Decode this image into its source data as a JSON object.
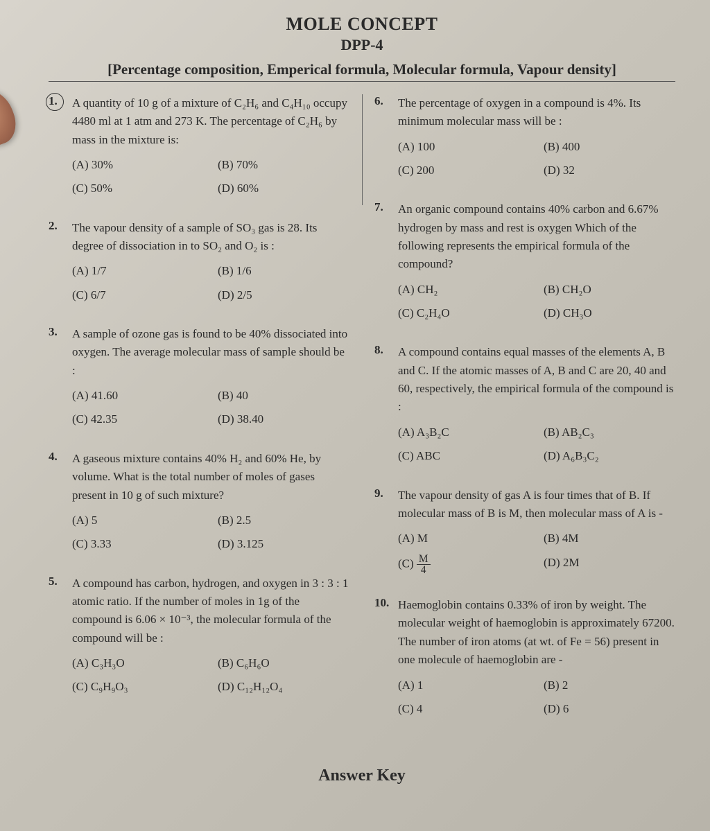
{
  "header": {
    "main": "MOLE CONCEPT",
    "sub": "DPP-4",
    "subtitle": "[Percentage composition, Emperical formula, Molecular formula, Vapour density]"
  },
  "left": [
    {
      "num": "1.",
      "circled": true,
      "text": "A quantity of 10 g of a mixture of C₂H₆ and C₄H₁₀ occupy 4480 ml at 1 atm and 273 K. The percentage of C₂H₆ by mass in the mixture is:",
      "opts": [
        "(A) 30%",
        "(B) 70%",
        "(C) 50%",
        "(D) 60%"
      ]
    },
    {
      "num": "2.",
      "text": "The vapour density of a sample of SO₃ gas is 28. Its degree of dissociation in to SO₂ and O₂ is :",
      "opts": [
        "(A) 1/7",
        "(B) 1/6",
        "(C) 6/7",
        "(D) 2/5"
      ]
    },
    {
      "num": "3.",
      "text": "A sample of ozone gas is found to be 40% dissociated into oxygen. The average molecular mass of sample should be :",
      "opts": [
        "(A) 41.60",
        "(B) 40",
        "(C) 42.35",
        "(D) 38.40"
      ]
    },
    {
      "num": "4.",
      "text": "A gaseous mixture contains 40% H₂ and 60% He, by volume. What is the total number of moles of gases present in 10 g of such mixture?",
      "opts": [
        "(A) 5",
        "(B) 2.5",
        "(C) 3.33",
        "(D) 3.125"
      ]
    },
    {
      "num": "5.",
      "text": "A compound has carbon, hydrogen, and oxygen in 3 : 3 : 1 atomic ratio. If the number of moles in 1g of the compound is 6.06 × 10⁻³, the molecular formula of the compound will be :",
      "opts": [
        "(A) C₃H₃O",
        "(B) C₆H₆O",
        "(C) C₉H₉O₃",
        "(D) C₁₂H₁₂O₄"
      ]
    }
  ],
  "right": [
    {
      "num": "6.",
      "text": "The percentage of oxygen in a compound is 4%. Its minimum molecular mass will be :",
      "opts": [
        "(A) 100",
        "(B) 400",
        "(C) 200",
        "(D) 32"
      ]
    },
    {
      "num": "7.",
      "text": "An organic compound contains 40% carbon and 6.67% hydrogen by mass and rest is oxygen Which of the following represents the empirical formula of the compound?",
      "opts": [
        "(A) CH₂",
        "(B) CH₂O",
        "(C) C₂H₄O",
        "(D) CH₃O"
      ]
    },
    {
      "num": "8.",
      "text": "A compound contains equal masses of the elements A, B and C. If the atomic masses of A, B and C are 20, 40 and 60, respectively, the empirical formula of the compound is :",
      "opts": [
        "(A) A₃B₂C",
        "(B) AB₂C₃",
        "(C) ABC",
        "(D) A₆B₃C₂"
      ]
    },
    {
      "num": "9.",
      "text": "The vapour density of gas A is four times that of B. If molecular mass of B is M, then molecular mass of A is -",
      "opts": [
        "(A) M",
        "(B) 4M",
        "(C) M/4",
        "(D) 2M"
      ],
      "fracOpt": 2
    },
    {
      "num": "10.",
      "text": "Haemoglobin contains 0.33% of iron by weight. The molecular weight of haemoglobin is approximately 67200. The number of iron atoms (at wt. of Fe = 56) present in one molecule of haemoglobin are -",
      "opts": [
        "(A) 1",
        "(B) 2",
        "(C) 4",
        "(D) 6"
      ]
    }
  ],
  "footer": "Answer Key"
}
